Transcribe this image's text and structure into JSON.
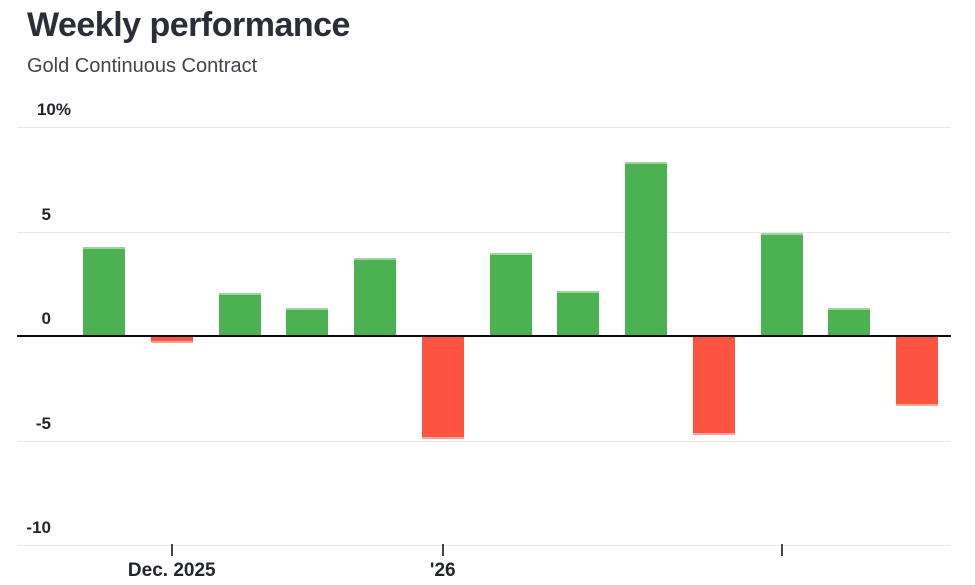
{
  "header": {
    "title": "Weekly performance",
    "subtitle": "Gold Continuous Contract"
  },
  "colors": {
    "positive_bar": "#4CB150",
    "negative_bar": "#FB5440",
    "gridline": "#E8E8E8",
    "zero_line": "#0A0A0A",
    "tick_mark": "#444444",
    "axis_text": "#21242A",
    "title_text": "#2B2E38",
    "subtitle_text": "#3F444E",
    "background": "#FFFFFF"
  },
  "chart_data": {
    "type": "bar",
    "title": "Weekly performance",
    "subtitle": "Gold Continuous Contract",
    "unit": "%",
    "description": "Weekly percentage change bars; green = positive week, red = negative week",
    "values": [
      4.2,
      -0.3,
      2.0,
      1.3,
      3.7,
      -4.9,
      3.9,
      2.1,
      8.3,
      -4.7,
      4.9,
      1.3,
      -3.3
    ],
    "y_ticks": [
      {
        "value": 10,
        "label": "10%"
      },
      {
        "value": 5,
        "label": "5"
      },
      {
        "value": 0,
        "label": "0"
      },
      {
        "value": -5,
        "label": "-5"
      },
      {
        "value": -10,
        "label": "-10"
      }
    ],
    "x_ticks": [
      {
        "bar_index": 1,
        "label": "Dec. 2025"
      },
      {
        "bar_index": 5,
        "label": "'26"
      },
      {
        "bar_index": 10,
        "label": ""
      }
    ],
    "ylim": [
      -10,
      10
    ],
    "grid": true,
    "legend_position": "none"
  }
}
